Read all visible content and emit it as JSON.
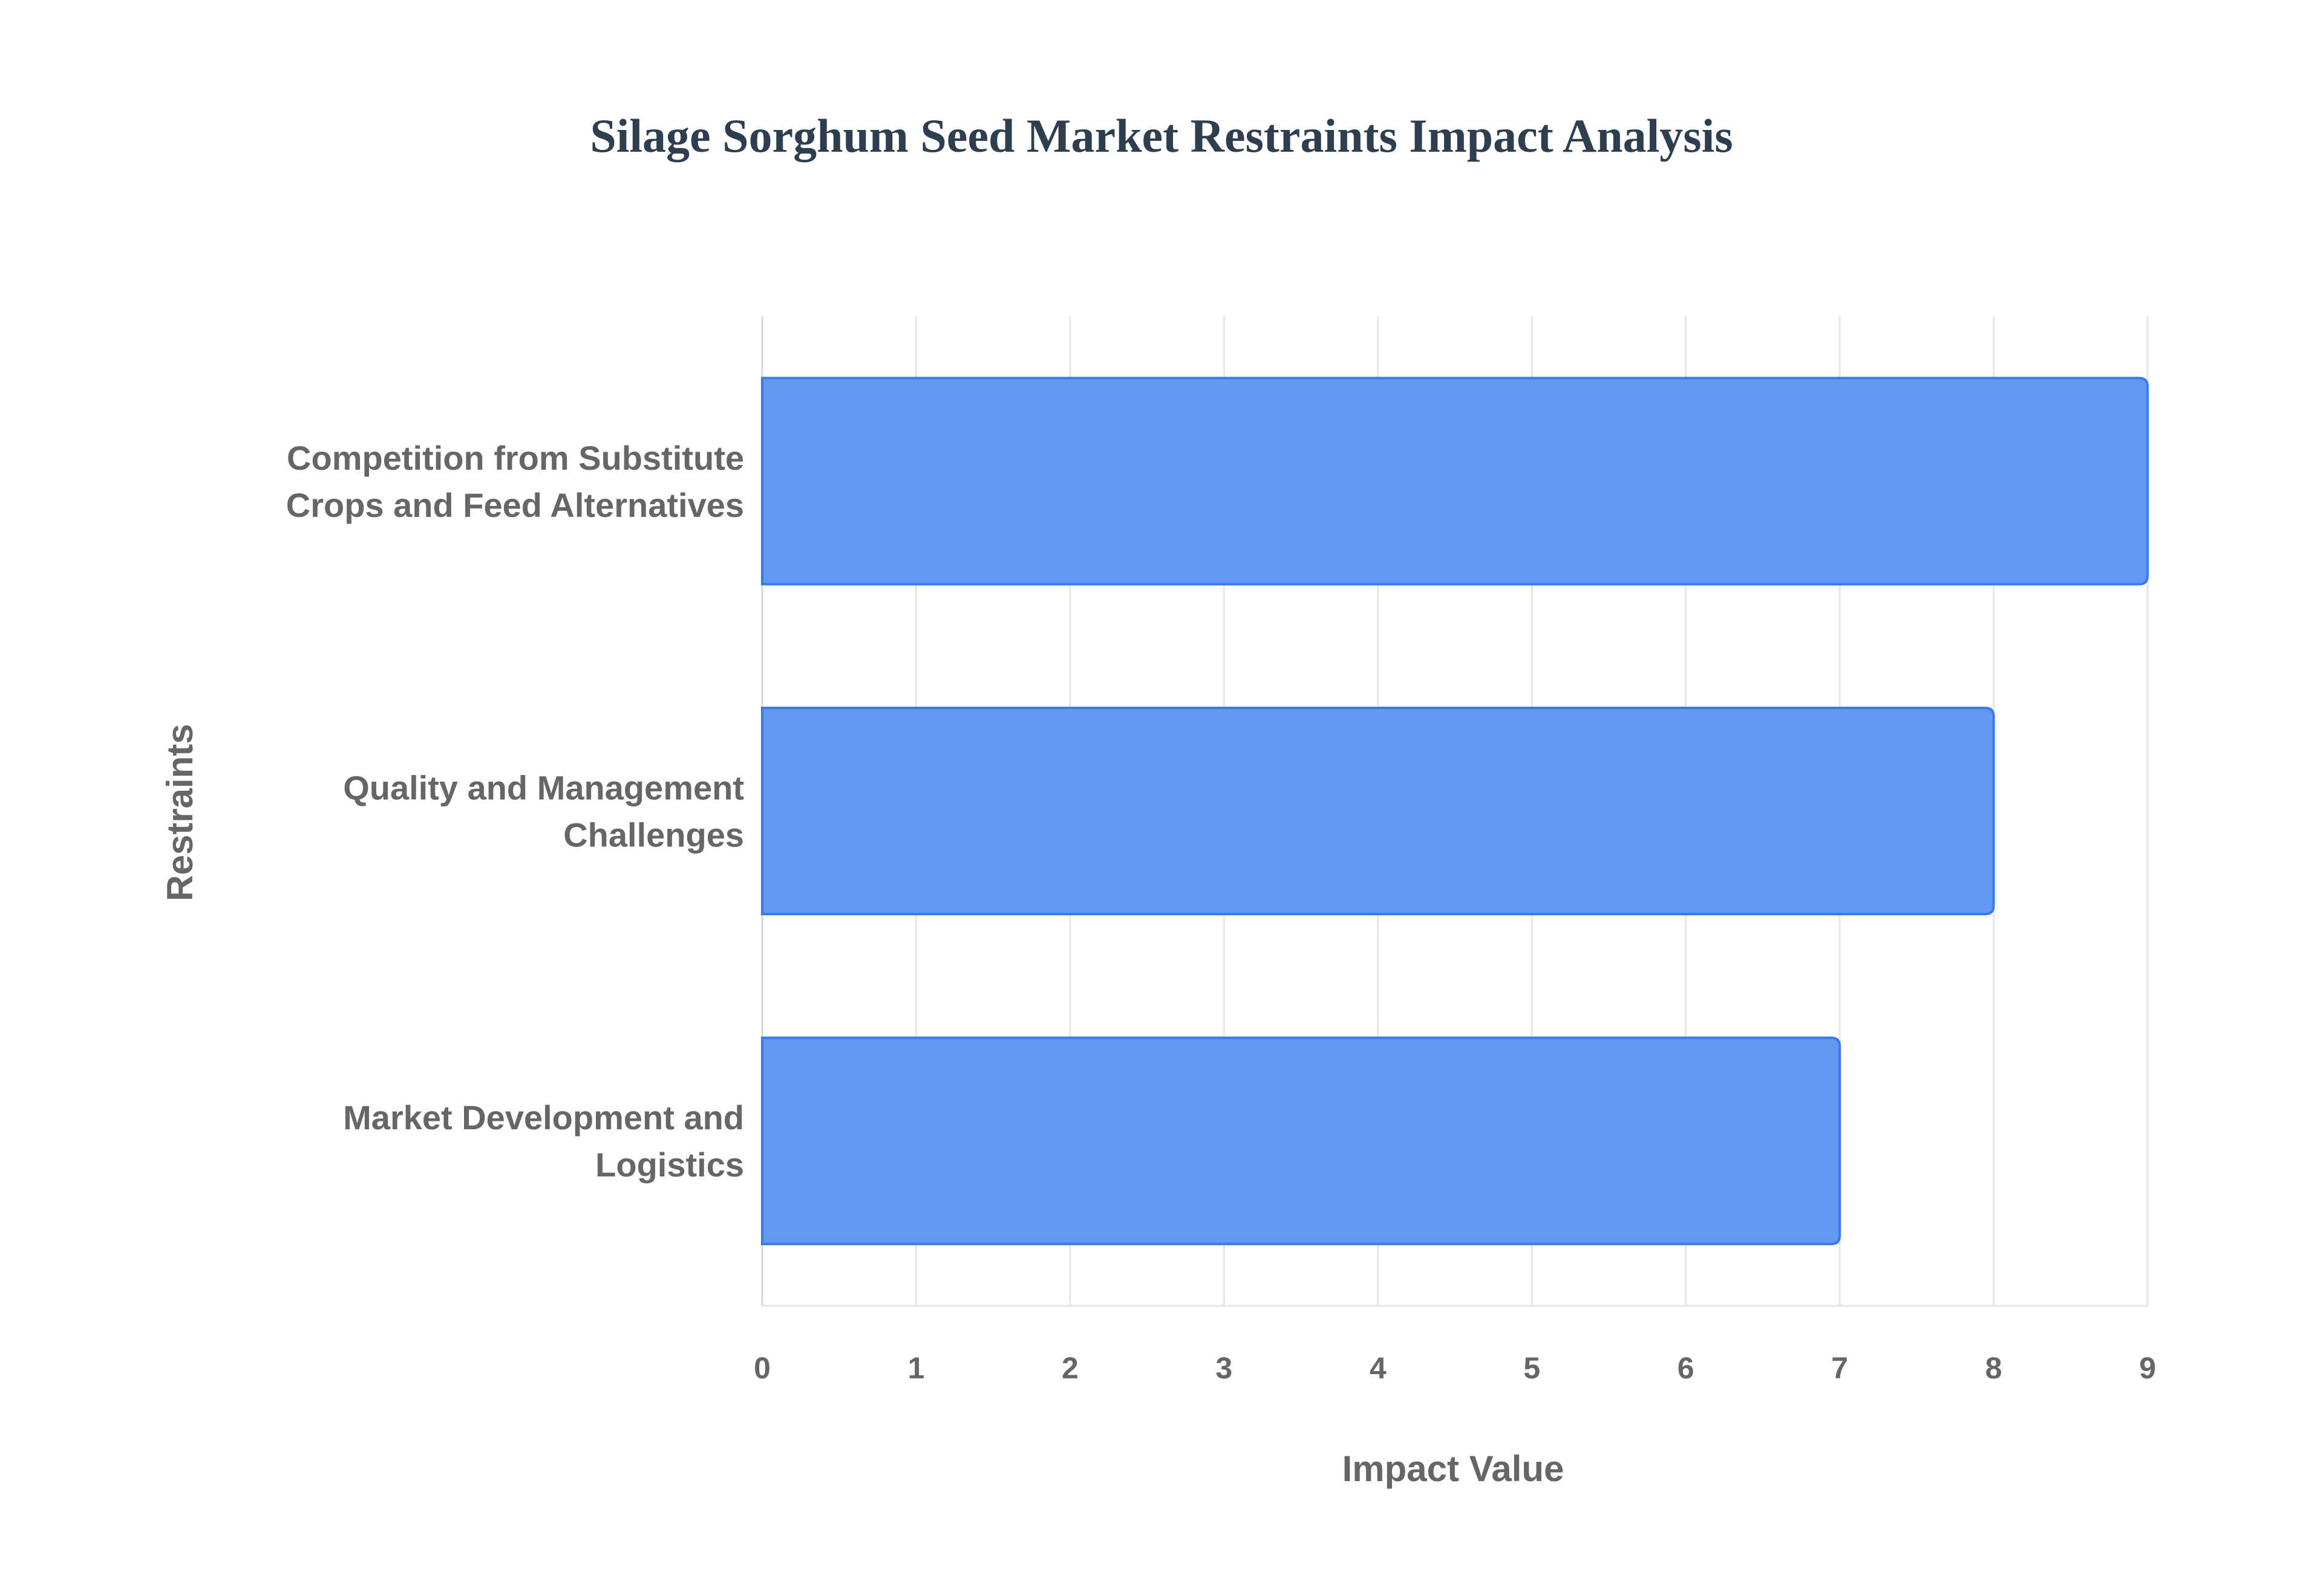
{
  "chart_data": {
    "type": "bar",
    "orientation": "horizontal",
    "title": "Silage Sorghum Seed Market Restraints Impact Analysis",
    "xlabel": "Impact Value",
    "ylabel": "Restraints",
    "categories": [
      [
        "Competition from Substitute",
        "Crops and Feed Alternatives"
      ],
      [
        "Quality and Management",
        "Challenges"
      ],
      [
        "Market Development and",
        "Logistics"
      ]
    ],
    "values": [
      9,
      8,
      7
    ],
    "xlim": [
      0,
      9
    ],
    "xticks": [
      "0",
      "1",
      "2",
      "3",
      "4",
      "5",
      "6",
      "7",
      "8",
      "9"
    ],
    "grid": true,
    "bar_color": "#6399f5",
    "bar_border_color": "#3b7be8"
  }
}
